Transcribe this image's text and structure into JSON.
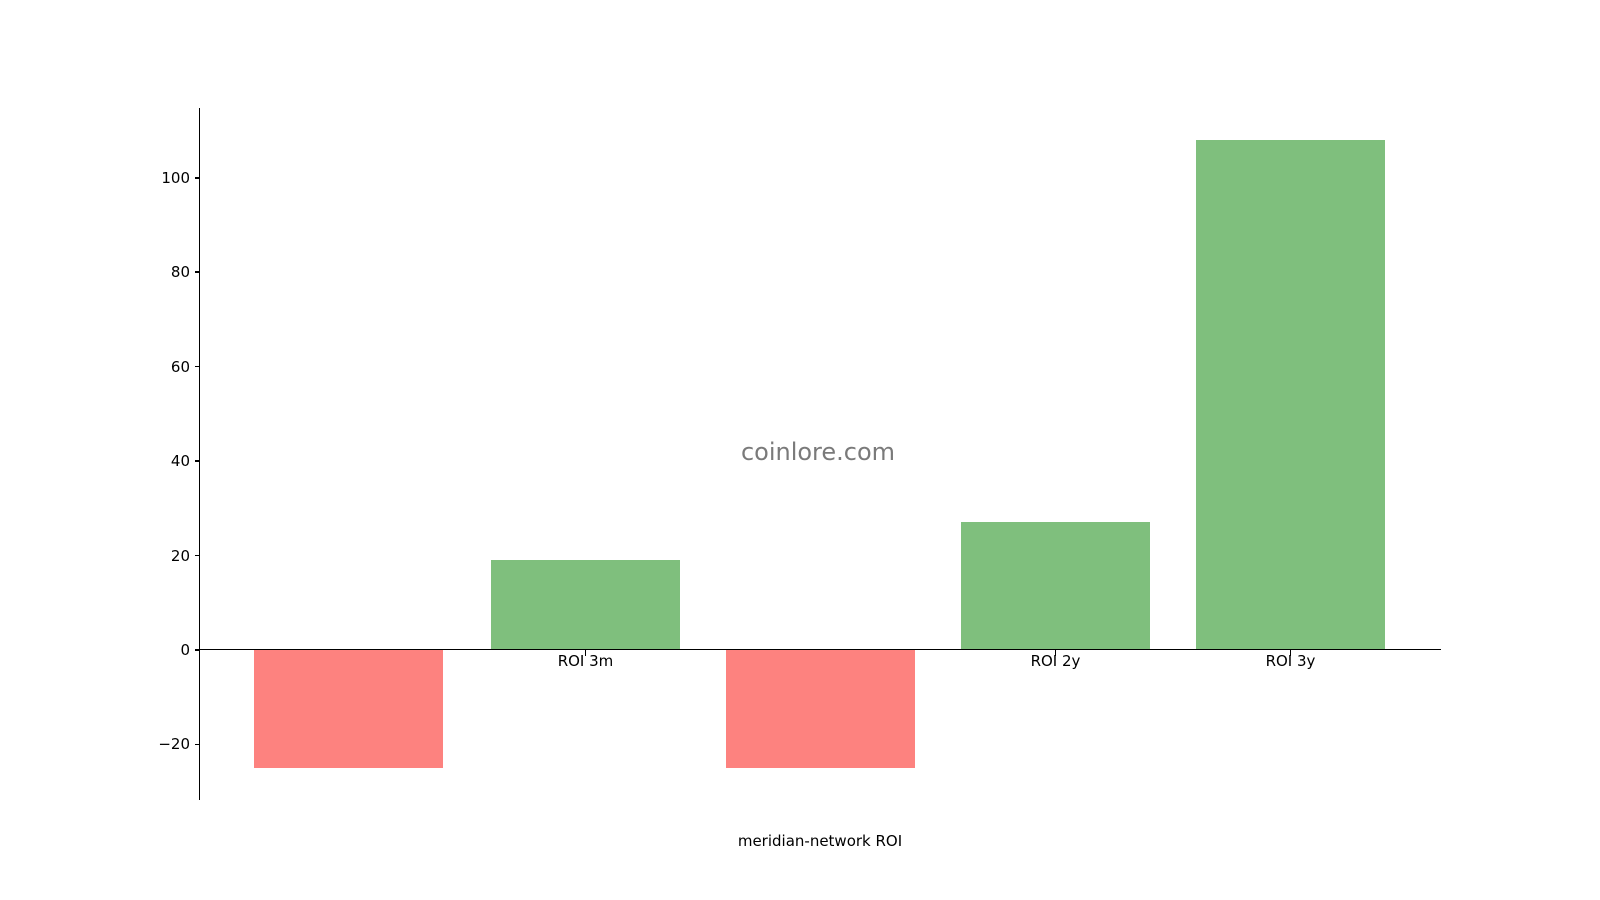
{
  "watermark": "coinlore.com",
  "footer": {
    "xlabel": "meridian-network ROI"
  },
  "chart_data": {
    "type": "bar",
    "title": "",
    "xlabel": "meridian-network ROI",
    "ylabel": "",
    "categories": [
      "",
      "ROI 3m",
      "",
      "ROI 2y",
      "ROI 3y"
    ],
    "values": [
      -25,
      19,
      -25,
      27,
      108
    ],
    "yticks": [
      -20,
      0,
      20,
      40,
      60,
      80,
      100
    ],
    "ylim": [
      -32,
      115
    ],
    "grid": false,
    "legend": false,
    "watermark": "coinlore.com",
    "colors": {
      "positive_bar": "#7fbf7d",
      "negative_bar": "#fd827f",
      "axis": "#000000",
      "tick_text": "#000000",
      "watermark_text": "#7a7a7a",
      "background": "#ffffff"
    },
    "notes": "x tick labels of the two negative bars are hidden behind the red bars"
  }
}
